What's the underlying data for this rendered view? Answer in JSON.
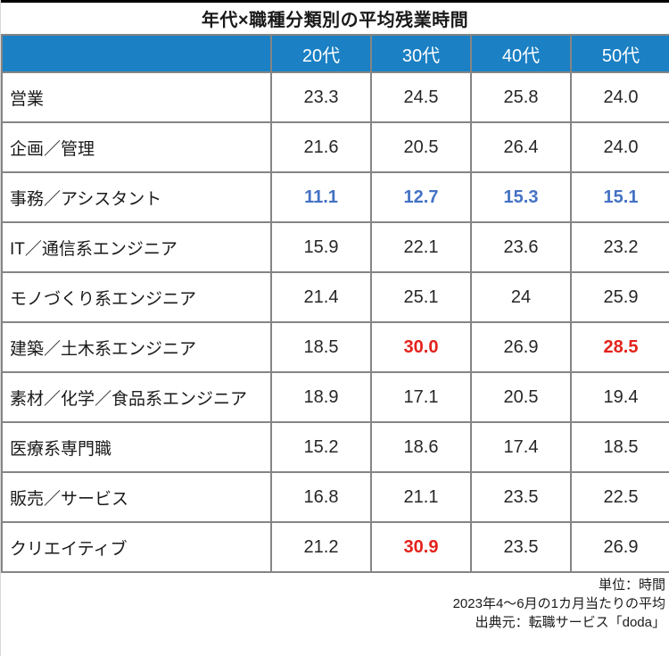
{
  "title": "年代×職種分類別の平均残業時間",
  "table": {
    "columns": [
      "20代",
      "30代",
      "40代",
      "50代"
    ],
    "rows": [
      {
        "label": "営業",
        "values": [
          "23.3",
          "24.5",
          "25.8",
          "24.0"
        ],
        "styles": [
          "",
          "",
          "",
          ""
        ]
      },
      {
        "label": "企画／管理",
        "values": [
          "21.6",
          "20.5",
          "26.4",
          "24.0"
        ],
        "styles": [
          "",
          "",
          "",
          ""
        ]
      },
      {
        "label": "事務／アシスタント",
        "values": [
          "11.1",
          "12.7",
          "15.3",
          "15.1"
        ],
        "styles": [
          "blue",
          "blue",
          "blue",
          "blue"
        ]
      },
      {
        "label": "IT／通信系エンジニア",
        "values": [
          "15.9",
          "22.1",
          "23.6",
          "23.2"
        ],
        "styles": [
          "",
          "",
          "",
          ""
        ]
      },
      {
        "label": "モノづくり系エンジニア",
        "values": [
          "21.4",
          "25.1",
          "24",
          "25.9"
        ],
        "styles": [
          "",
          "",
          "",
          ""
        ]
      },
      {
        "label": "建築／土木系エンジニア",
        "values": [
          "18.5",
          "30.0",
          "26.9",
          "28.5"
        ],
        "styles": [
          "",
          "red",
          "",
          "red"
        ]
      },
      {
        "label": "素材／化学／食品系エンジニア",
        "values": [
          "18.9",
          "17.1",
          "20.5",
          "19.4"
        ],
        "styles": [
          "",
          "",
          "",
          ""
        ]
      },
      {
        "label": "医療系専門職",
        "values": [
          "15.2",
          "18.6",
          "17.4",
          "18.5"
        ],
        "styles": [
          "",
          "",
          "",
          ""
        ]
      },
      {
        "label": "販売／サービス",
        "values": [
          "16.8",
          "21.1",
          "23.5",
          "22.5"
        ],
        "styles": [
          "",
          "",
          "",
          ""
        ]
      },
      {
        "label": "クリエイティブ",
        "values": [
          "21.2",
          "30.9",
          "23.5",
          "26.9"
        ],
        "styles": [
          "",
          "red",
          "",
          ""
        ]
      }
    ]
  },
  "footer": {
    "lines": [
      "単位：時間",
      "2023年4～6月の1カ月当たりの平均",
      "出典元：転職サービス「doda」"
    ]
  },
  "colors": {
    "header_bg": "#1b80c4",
    "highlight_blue": "#4472c4",
    "highlight_red": "#e3221b",
    "border": "#858585"
  },
  "chart_data": {
    "type": "table",
    "title": "年代×職種分類別の平均残業時間",
    "categories": [
      "20代",
      "30代",
      "40代",
      "50代"
    ],
    "series": [
      {
        "name": "営業",
        "values": [
          23.3,
          24.5,
          25.8,
          24.0
        ]
      },
      {
        "name": "企画／管理",
        "values": [
          21.6,
          20.5,
          26.4,
          24.0
        ]
      },
      {
        "name": "事務／アシスタント",
        "values": [
          11.1,
          12.7,
          15.3,
          15.1
        ]
      },
      {
        "name": "IT／通信系エンジニア",
        "values": [
          15.9,
          22.1,
          23.6,
          23.2
        ]
      },
      {
        "name": "モノづくり系エンジニア",
        "values": [
          21.4,
          25.1,
          24.0,
          25.9
        ]
      },
      {
        "name": "建築／土木系エンジニア",
        "values": [
          18.5,
          30.0,
          26.9,
          28.5
        ]
      },
      {
        "name": "素材／化学／食品系エンジニア",
        "values": [
          18.9,
          17.1,
          20.5,
          19.4
        ]
      },
      {
        "name": "医療系専門職",
        "values": [
          15.2,
          18.6,
          17.4,
          18.5
        ]
      },
      {
        "name": "販売／サービス",
        "values": [
          16.8,
          21.1,
          23.5,
          22.5
        ]
      },
      {
        "name": "クリエイティブ",
        "values": [
          21.2,
          30.9,
          23.5,
          26.9
        ]
      }
    ],
    "unit": "時間",
    "period_note": "2023年4～6月の1カ月当たりの平均",
    "source": "転職サービス「doda」",
    "highlights": {
      "blue_row": "事務／アシスタント",
      "red_cells": [
        {
          "row": "建築／土木系エンジニア",
          "column": "30代",
          "value": 30.0
        },
        {
          "row": "建築／土木系エンジニア",
          "column": "50代",
          "value": 28.5
        },
        {
          "row": "クリエイティブ",
          "column": "30代",
          "value": 30.9
        }
      ]
    }
  }
}
